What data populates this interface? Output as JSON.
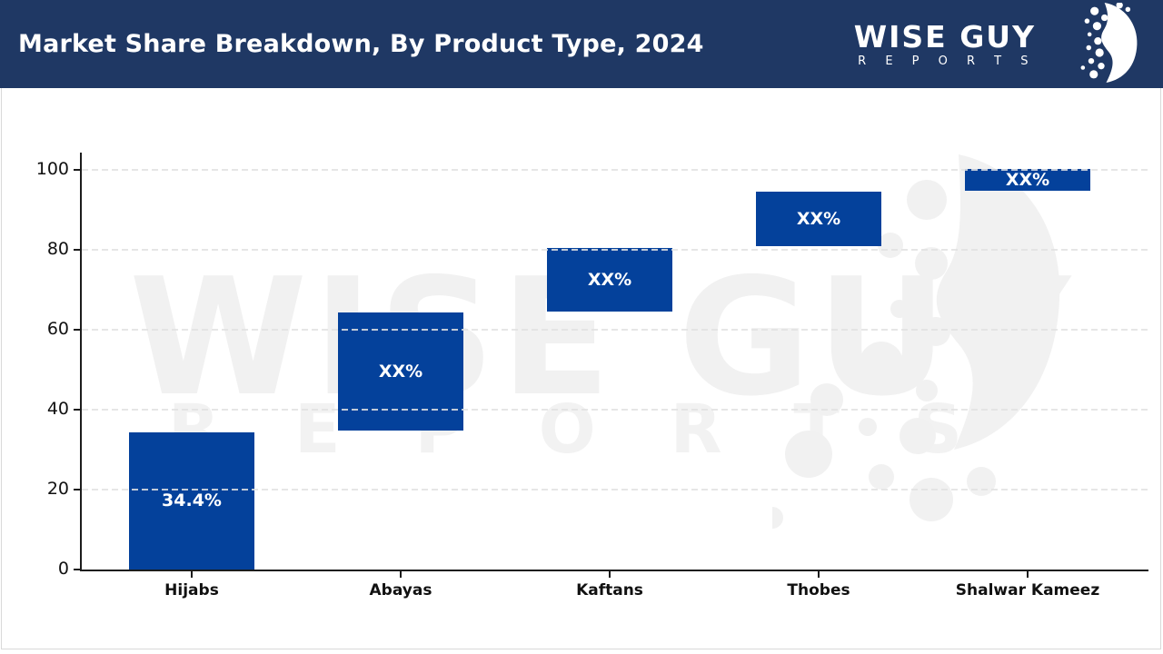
{
  "header": {
    "title": "Market Share Breakdown, By Product Type, 2024",
    "bg_color": "#1F3864",
    "logo": {
      "line1": "WISE GUY",
      "line2": "R E P O R T S"
    }
  },
  "watermark": {
    "line1": "WISE GUY",
    "line2": "REPORTS"
  },
  "chart_data": {
    "type": "bar",
    "subtype": "waterfall",
    "title": "Market Share Breakdown, By Product Type, 2024",
    "categories": [
      "Hijabs",
      "Abayas",
      "Kaftans",
      "Thobes",
      "Shalwar Kameez"
    ],
    "segments": [
      {
        "category": "Hijabs",
        "start": 0,
        "end": 34.4,
        "label": "34.4%"
      },
      {
        "category": "Abayas",
        "start": 34.8,
        "end": 64.3,
        "label": "XX%"
      },
      {
        "category": "Kaftans",
        "start": 64.5,
        "end": 80.5,
        "label": "XX%"
      },
      {
        "category": "Thobes",
        "start": 80.9,
        "end": 94.5,
        "label": "XX%"
      },
      {
        "category": "Shalwar Kameez",
        "start": 94.8,
        "end": 100.2,
        "label": "XX%"
      }
    ],
    "yticks": [
      0,
      20,
      40,
      60,
      80,
      100
    ],
    "ylim": [
      0,
      104
    ],
    "xlabel": "",
    "ylabel": "",
    "grid": "dashed horizontal gridlines, drawn over bars",
    "legend": "none",
    "bar_color": "#04419B",
    "bar_label_color": "#ffffff",
    "axis_color": "#1c1c1c",
    "grid_color": "#e2e2e2",
    "watermark_color": "#f1f1f1"
  }
}
